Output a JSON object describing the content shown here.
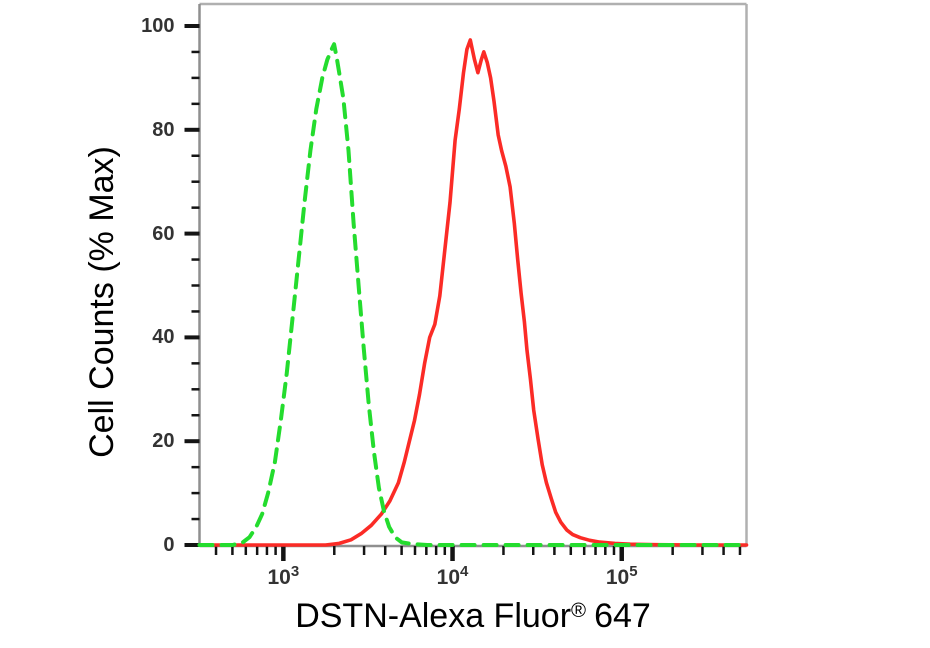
{
  "chart_data": {
    "type": "line",
    "subtype": "flow-cytometry-histogram",
    "title": "",
    "background": "#ffffff",
    "grid": false,
    "legend": "none",
    "y_axis": {
      "label": "Cell Counts (% Max)",
      "range": [
        0,
        100
      ],
      "ticks_major": [
        {
          "value": 0,
          "label": "0"
        },
        {
          "value": 20,
          "label": "20"
        },
        {
          "value": 40,
          "label": "40"
        },
        {
          "value": 60,
          "label": "60"
        },
        {
          "value": 80,
          "label": "80"
        },
        {
          "value": 100,
          "label": "100"
        }
      ],
      "ticks_minor": [
        5,
        10,
        15,
        25,
        30,
        35,
        45,
        50,
        55,
        65,
        70,
        75,
        85,
        90,
        95
      ]
    },
    "x_axis": {
      "title_base": "DSTN-Alexa Fluor",
      "title_sup": "®",
      "title_suffix": "647",
      "scale": "log10",
      "range_log10": [
        2.5044,
        5.7375
      ],
      "ticks_major": [
        {
          "value": 1000,
          "base": "10",
          "exp": "3"
        },
        {
          "value": 10000,
          "base": "10",
          "exp": "4"
        },
        {
          "value": 100000,
          "base": "10",
          "exp": "5"
        }
      ],
      "ticks_minor": [
        400,
        500,
        600,
        700,
        800,
        900,
        2000,
        3000,
        4000,
        5000,
        6000,
        7000,
        8000,
        9000,
        20000,
        30000,
        40000,
        50000,
        60000,
        70000,
        80000,
        90000,
        200000,
        300000,
        400000,
        500000
      ]
    },
    "colors": {
      "axis_line": "#8f8f8f",
      "frame_top_right": "#b0b0b0",
      "tick": "#141414",
      "tick_label": "#333333",
      "axis_title": "#000000"
    },
    "series": [
      {
        "name": "red-solid-stained",
        "color": "#fb2b26",
        "line_style": "solid",
        "line_width": 3.6,
        "dash": null,
        "peak_percent": 97,
        "peak_x_approx": 12500,
        "points_log10x_pct": [
          [
            2.5044,
            0
          ],
          [
            3.0,
            0
          ],
          [
            3.25,
            0
          ],
          [
            3.33,
            0.3
          ],
          [
            3.4,
            1.0
          ],
          [
            3.46,
            2.2
          ],
          [
            3.52,
            3.8
          ],
          [
            3.58,
            6.0
          ],
          [
            3.63,
            8.5
          ],
          [
            3.68,
            12
          ],
          [
            3.715,
            16
          ],
          [
            3.745,
            20
          ],
          [
            3.775,
            24
          ],
          [
            3.805,
            29
          ],
          [
            3.835,
            35
          ],
          [
            3.865,
            40
          ],
          [
            3.895,
            42.5
          ],
          [
            3.925,
            48
          ],
          [
            3.955,
            57
          ],
          [
            3.985,
            66
          ],
          [
            4.015,
            78
          ],
          [
            4.04,
            84
          ],
          [
            4.065,
            91
          ],
          [
            4.085,
            95.5
          ],
          [
            4.105,
            97.3
          ],
          [
            4.13,
            93.5
          ],
          [
            4.15,
            91
          ],
          [
            4.17,
            93.5
          ],
          [
            4.185,
            95
          ],
          [
            4.205,
            93
          ],
          [
            4.225,
            90
          ],
          [
            4.245,
            85.5
          ],
          [
            4.27,
            79
          ],
          [
            4.29,
            76
          ],
          [
            4.315,
            73
          ],
          [
            4.34,
            69
          ],
          [
            4.365,
            62
          ],
          [
            4.385,
            55
          ],
          [
            4.405,
            48.5
          ],
          [
            4.425,
            43
          ],
          [
            4.44,
            37.5
          ],
          [
            4.46,
            32
          ],
          [
            4.48,
            26
          ],
          [
            4.505,
            20.5
          ],
          [
            4.53,
            15.5
          ],
          [
            4.555,
            12
          ],
          [
            4.585,
            8.8
          ],
          [
            4.61,
            6.3
          ],
          [
            4.64,
            4.4
          ],
          [
            4.675,
            2.9
          ],
          [
            4.71,
            2.0
          ],
          [
            4.755,
            1.4
          ],
          [
            4.81,
            0.9
          ],
          [
            4.87,
            0.55
          ],
          [
            4.96,
            0.3
          ],
          [
            5.05,
            0.15
          ],
          [
            5.2,
            0.05
          ],
          [
            5.45,
            0
          ],
          [
            5.7375,
            0
          ]
        ]
      },
      {
        "name": "green-dashed-control",
        "color": "#24dc2e",
        "line_style": "dashed",
        "line_width": 4,
        "dash": [
          13,
          9
        ],
        "peak_percent": 96.5,
        "peak_x_approx": 2000,
        "points_log10x_pct": [
          [
            2.5044,
            0
          ],
          [
            2.62,
            0
          ],
          [
            2.7,
            0
          ],
          [
            2.76,
            0.5
          ],
          [
            2.8,
            1.5
          ],
          [
            2.84,
            3.5
          ],
          [
            2.875,
            6
          ],
          [
            2.91,
            10
          ],
          [
            2.95,
            16
          ],
          [
            2.985,
            24
          ],
          [
            3.02,
            33
          ],
          [
            3.055,
            44
          ],
          [
            3.09,
            55
          ],
          [
            3.125,
            66
          ],
          [
            3.16,
            76
          ],
          [
            3.195,
            84
          ],
          [
            3.23,
            90
          ],
          [
            3.26,
            93.5
          ],
          [
            3.285,
            95.5
          ],
          [
            3.3,
            96.5
          ],
          [
            3.315,
            94
          ],
          [
            3.33,
            91
          ],
          [
            3.355,
            86
          ],
          [
            3.385,
            76
          ],
          [
            3.415,
            62
          ],
          [
            3.445,
            50
          ],
          [
            3.475,
            38
          ],
          [
            3.505,
            27
          ],
          [
            3.535,
            18
          ],
          [
            3.565,
            11
          ],
          [
            3.595,
            6.5
          ],
          [
            3.625,
            3.5
          ],
          [
            3.66,
            1.5
          ],
          [
            3.7,
            0.5
          ],
          [
            3.76,
            0.2
          ],
          [
            3.85,
            0
          ],
          [
            4.3,
            0
          ],
          [
            4.8,
            0
          ],
          [
            5.3,
            0
          ],
          [
            5.7375,
            0
          ]
        ]
      }
    ]
  }
}
